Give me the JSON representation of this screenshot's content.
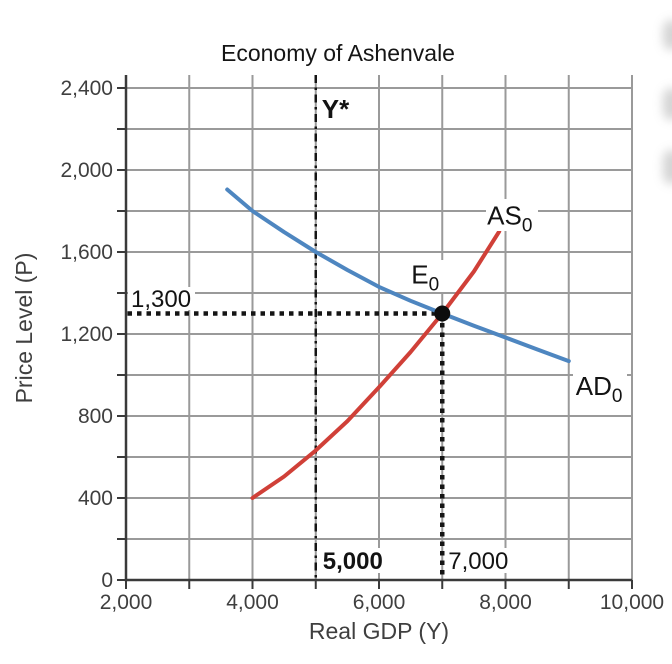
{
  "title": "Economy of Ashenvale",
  "chart_data": {
    "type": "line",
    "title": "Economy of Ashenvale",
    "xlabel": "Real GDP (Y)",
    "ylabel": "Price Level (P)",
    "xlim": [
      2000,
      10000
    ],
    "ylim": [
      0,
      2400
    ],
    "grid": true,
    "x_tick_step_minor": 1000,
    "x_tick_step_major": 2000,
    "y_tick_step_minor": 200,
    "y_tick_step_major": 400,
    "x_tick_labels": [
      "2,000",
      "4,000",
      "6,000",
      "8,000",
      "10,000"
    ],
    "y_tick_labels": [
      "0",
      "400",
      "800",
      "1,200",
      "1,600",
      "2,000",
      "2,400"
    ],
    "series": [
      {
        "name": "aggregate-demand",
        "label": "AD",
        "label_sub": "0",
        "color": "#4e86c0",
        "points": [
          [
            3600,
            1905
          ],
          [
            4000,
            1800
          ],
          [
            4500,
            1697
          ],
          [
            5000,
            1600
          ],
          [
            5500,
            1512
          ],
          [
            6000,
            1430
          ],
          [
            6500,
            1362
          ],
          [
            7000,
            1300
          ],
          [
            7500,
            1240
          ],
          [
            8000,
            1183
          ],
          [
            8500,
            1125
          ],
          [
            9000,
            1068
          ]
        ]
      },
      {
        "name": "aggregate-supply",
        "label": "AS",
        "label_sub": "0",
        "color": "#d04038",
        "points": [
          [
            4000,
            400
          ],
          [
            4500,
            505
          ],
          [
            5000,
            632
          ],
          [
            5500,
            775
          ],
          [
            6000,
            940
          ],
          [
            6500,
            1112
          ],
          [
            7000,
            1300
          ],
          [
            7500,
            1505
          ],
          [
            7900,
            1700
          ]
        ]
      }
    ],
    "equilibrium": {
      "x": 7000,
      "y": 1300,
      "label": "E",
      "label_sub": "0",
      "price_label": "1,300",
      "quantity_label": "7,000"
    },
    "potential_output": {
      "x": 5000,
      "label": "Y*",
      "quantity_label": "5,000"
    }
  },
  "colors": {
    "grid": "#9a9a9a",
    "axis": "#3a3a3a",
    "tick_text": "#3f3f3f",
    "annotation_text": "#131313",
    "ad_curve": "#4e86c0",
    "as_curve": "#d04038",
    "equilibrium_dot": "#0d0d0d",
    "background": "#ffffff"
  }
}
